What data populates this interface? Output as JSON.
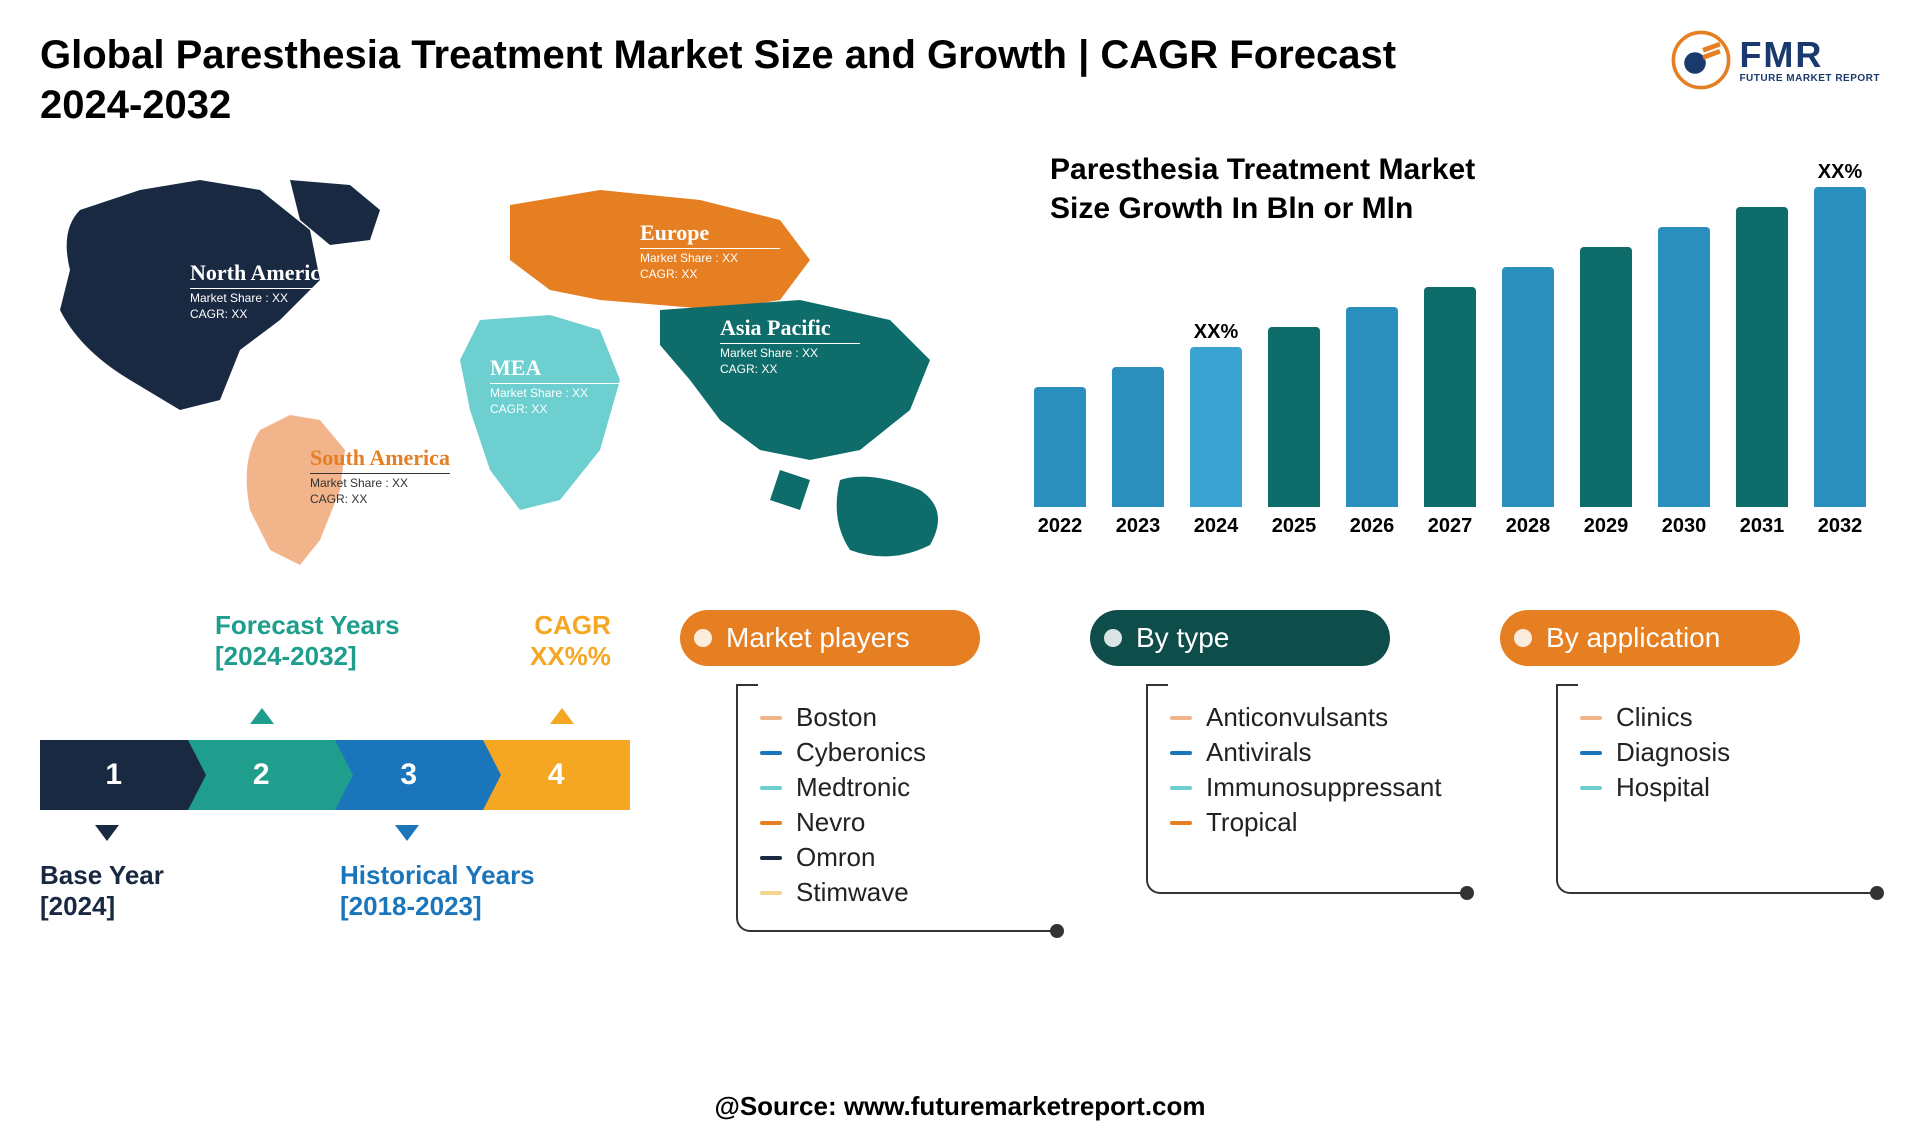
{
  "title": "Global Paresthesia Treatment Market Size and Growth | CAGR Forecast 2024-2032",
  "logo": {
    "fmr": "FMR",
    "sub": "FUTURE MARKET REPORT",
    "icon_fill": "#e67e22",
    "text_fill": "#1a3a6e"
  },
  "source": "@Source: www.futuremarketreport.com",
  "colors": {
    "navy": "#1a2942",
    "teal_dark": "#0e6d6a",
    "teal_med": "#27b0b0",
    "teal_light": "#6dcfcf",
    "orange": "#e67e22",
    "peach": "#f2b48a",
    "bar_mid": "#2b8fbd",
    "bar_dark": "#0e6d6a",
    "bar_light": "#3ba3d1",
    "tl_teal": "#1f9e8e",
    "tl_blue": "#1b75bb",
    "tl_orange": "#f5a623"
  },
  "chart": {
    "title": "Paresthesia Treatment Market Size Growth In Bln or Mln",
    "type": "bar",
    "years": [
      "2022",
      "2023",
      "2024",
      "2025",
      "2026",
      "2027",
      "2028",
      "2029",
      "2030",
      "2031",
      "2032"
    ],
    "heights": [
      120,
      140,
      160,
      180,
      200,
      220,
      240,
      260,
      280,
      300,
      320
    ],
    "colors": [
      "#2b8fbd",
      "#2b8fbd",
      "#3ba3d1",
      "#0e6d6a",
      "#2b8fbd",
      "#0e6d6a",
      "#2b8fbd",
      "#0e6d6a",
      "#2b8fbd",
      "#0e6d6a",
      "#2b8fbd"
    ],
    "annotations": {
      "2": "XX%",
      "10": "XX%"
    },
    "label_fontsize": 20,
    "title_fontsize": 30
  },
  "regions": {
    "na": {
      "name": "North America",
      "share": "Market Share : XX",
      "cagr": "CAGR: XX"
    },
    "sa": {
      "name": "South America",
      "share": "Market Share : XX",
      "cagr": "CAGR: XX"
    },
    "eu": {
      "name": "Europe",
      "share": "Market Share : XX",
      "cagr": "CAGR: XX"
    },
    "ap": {
      "name": "Asia Pacific",
      "share": "Market Share : XX",
      "cagr": "CAGR: XX"
    },
    "mea": {
      "name": "MEA",
      "share": "Market Share : XX",
      "cagr": "CAGR: XX"
    }
  },
  "timeline": {
    "forecast_label": "Forecast Years",
    "forecast_range": "[2024-2032]",
    "cagr_label": "CAGR",
    "cagr_value": "XX%%",
    "base_label": "Base Year",
    "base_range": "[2024]",
    "hist_label": "Historical Years",
    "hist_range": "[2018-2023]",
    "segments": [
      "1",
      "2",
      "3",
      "4"
    ]
  },
  "blocks": {
    "players": {
      "title": "Market players",
      "pill_color": "#e67e22",
      "items": [
        {
          "c": "#f2b48a",
          "t": "Boston"
        },
        {
          "c": "#1b75bb",
          "t": "Cyberonics"
        },
        {
          "c": "#6dcfcf",
          "t": "Medtronic"
        },
        {
          "c": "#e67e22",
          "t": "Nevro"
        },
        {
          "c": "#1a2942",
          "t": "Omron"
        },
        {
          "c": "#f2d58a",
          "t": "Stimwave"
        }
      ]
    },
    "type": {
      "title": "By type",
      "pill_color": "#0e4d4a",
      "items": [
        {
          "c": "#f2b48a",
          "t": "Anticonvulsants"
        },
        {
          "c": "#1b75bb",
          "t": "Antivirals"
        },
        {
          "c": "#6dcfcf",
          "t": "Immunosuppressant"
        },
        {
          "c": "#e67e22",
          "t": "Tropical"
        }
      ]
    },
    "application": {
      "title": "By application",
      "pill_color": "#e67e22",
      "items": [
        {
          "c": "#f2b48a",
          "t": "Clinics"
        },
        {
          "c": "#1b75bb",
          "t": "Diagnosis"
        },
        {
          "c": "#6dcfcf",
          "t": "Hospital"
        }
      ]
    }
  }
}
